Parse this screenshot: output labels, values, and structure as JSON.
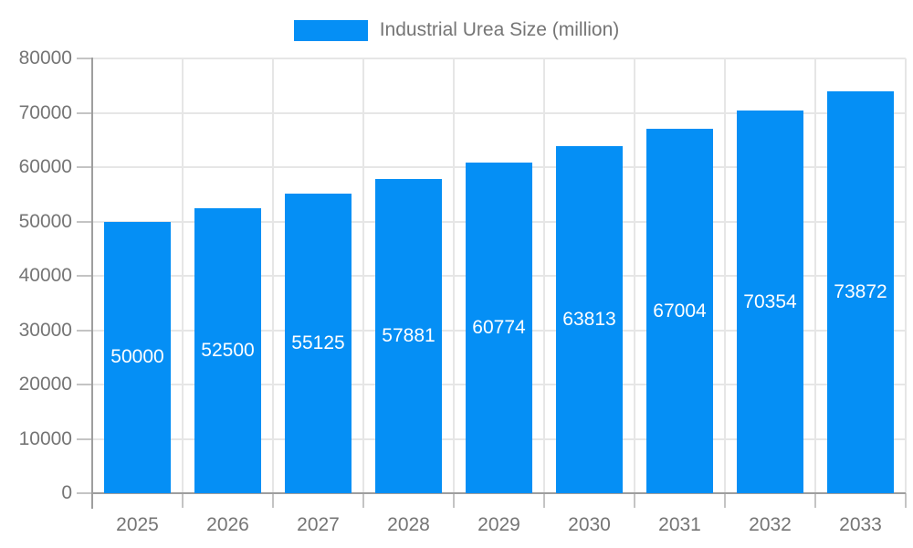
{
  "legend": {
    "label": "Industrial Urea Size (million)"
  },
  "chart_data": {
    "type": "bar",
    "title": "Industrial Urea Size (million)",
    "categories": [
      "2025",
      "2026",
      "2027",
      "2028",
      "2029",
      "2030",
      "2031",
      "2032",
      "2033"
    ],
    "values": [
      50000,
      52500,
      55125,
      57881,
      60774,
      63813,
      67004,
      70354,
      73872
    ],
    "value_labels": [
      "50000",
      "52500",
      "55125",
      "57881",
      "60774",
      "63813",
      "67004",
      "70354",
      "73872"
    ],
    "xlabel": "",
    "ylabel": "",
    "ylim": [
      0,
      80000
    ],
    "ytick_step": 10000,
    "ytick_labels": [
      "0",
      "10000",
      "20000",
      "30000",
      "40000",
      "50000",
      "60000",
      "70000",
      "80000"
    ],
    "grid": true,
    "legend_position": "top",
    "colors": {
      "bar": "#058FF5",
      "value_label": "#ffffff",
      "axis_text": "#757575",
      "grid_line": "#e6e6e6",
      "axis_line": "#9e9e9e",
      "tick": "#c4c4c4",
      "background": "#ffffff"
    }
  }
}
